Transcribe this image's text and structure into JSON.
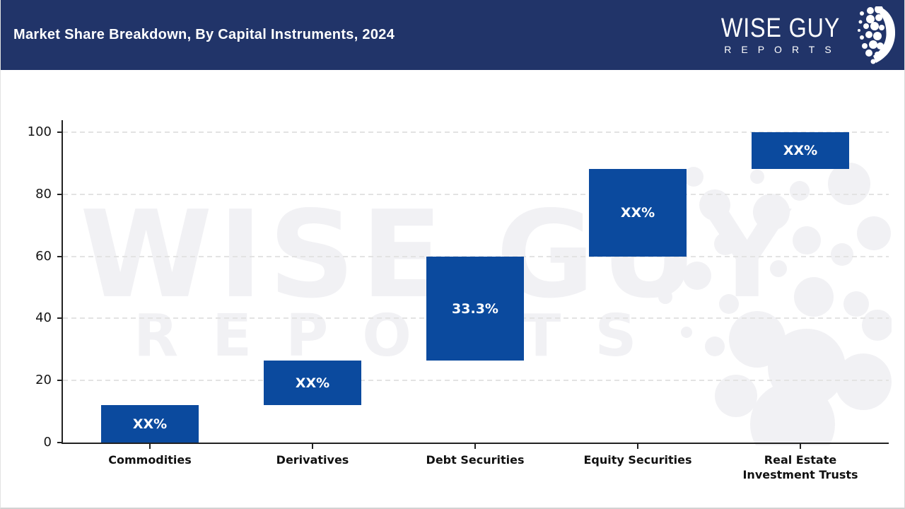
{
  "header": {
    "title": "Market Share Breakdown, By Capital Instruments, 2024",
    "bg_color": "#213469",
    "logo": {
      "line1": "WISE GUY",
      "line2": "REPORTS"
    }
  },
  "watermark": {
    "line1": "WISE GUY",
    "line2": "REPORTS"
  },
  "chart_data": {
    "type": "bar",
    "subtype": "waterfall",
    "title": "Market Share Breakdown, By Capital Instruments, 2024",
    "categories": [
      "Commodities",
      "Derivatives",
      "Debt Securities",
      "Equity Securities",
      "Real Estate\nInvestment Trusts"
    ],
    "bar_starts": [
      0,
      12,
      26.4,
      59.8,
      88.1
    ],
    "bar_ends": [
      12,
      26.4,
      59.8,
      88.1,
      100
    ],
    "bar_labels": [
      "XX%",
      "XX%",
      "33.3%",
      "XX%",
      "XX%"
    ],
    "xlabel": "",
    "ylabel": "",
    "ylim": [
      0,
      100
    ],
    "yticks": [
      0,
      20,
      40,
      60,
      80,
      100
    ],
    "grid": "horizontal-dashed",
    "legend": "none",
    "bar_color": "#0b4a9e",
    "bar_label_color": "#ffffff",
    "axis_color": "#222222",
    "gridline_color": "#e3e3e3"
  }
}
